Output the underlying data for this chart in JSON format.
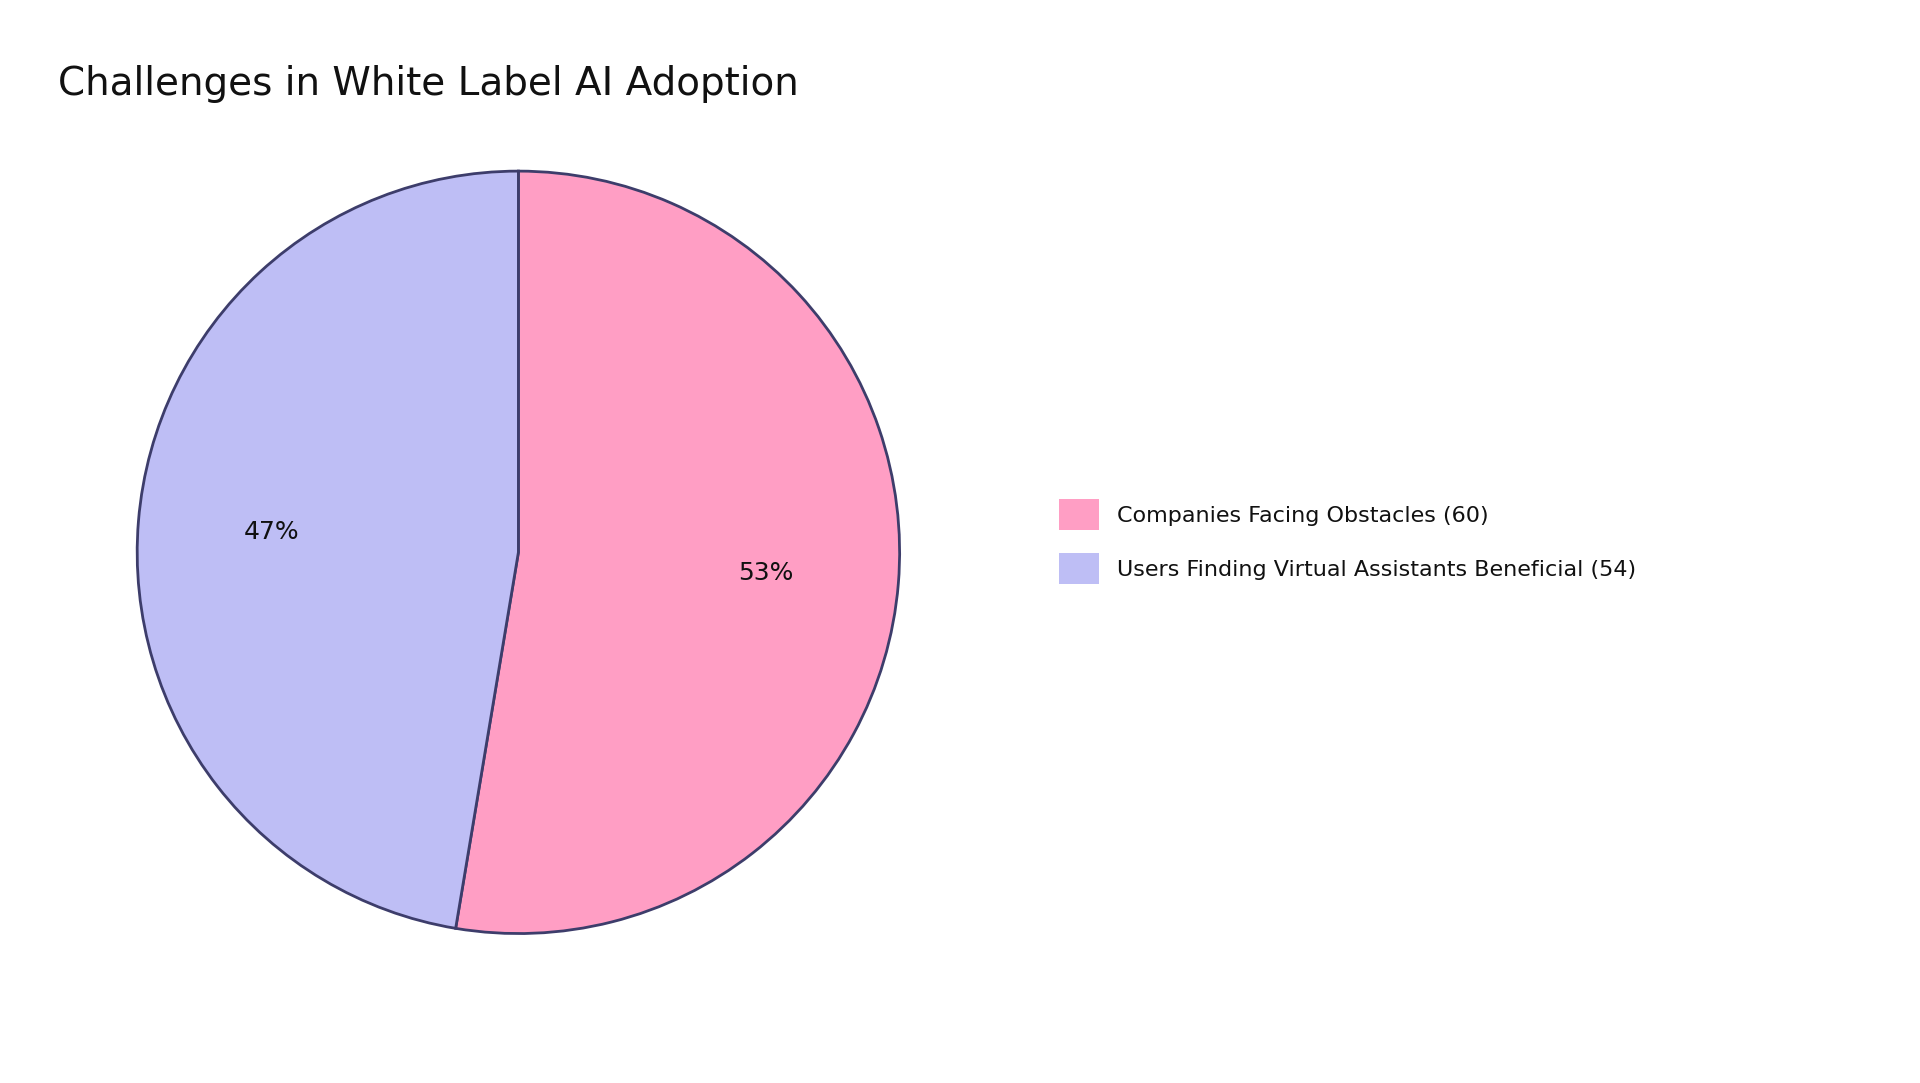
{
  "title": "Challenges in White Label AI Adoption",
  "values": [
    60,
    54
  ],
  "labels": [
    "Companies Facing Obstacles (60)",
    "Users Finding Virtual Assistants Beneficial (54)"
  ],
  "colors": [
    "#FF9EC4",
    "#BEBEF5"
  ],
  "edge_color": "#3D3D6B",
  "pct_labels": [
    "53%",
    "47%"
  ],
  "title_fontsize": 28,
  "legend_fontsize": 16,
  "pct_fontsize": 18,
  "background_color": "#FFFFFF",
  "text_color": "#111111"
}
